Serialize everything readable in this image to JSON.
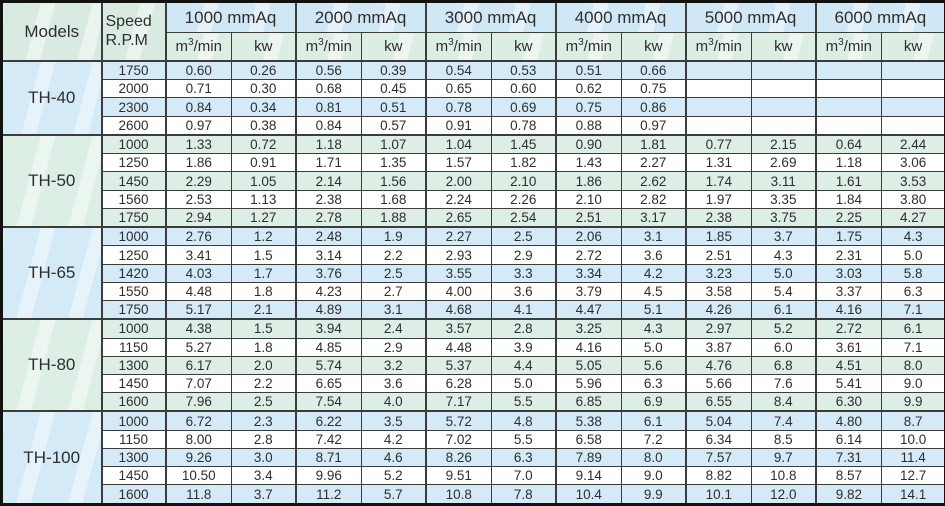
{
  "colors": {
    "tint_blue": "#d4eaf7",
    "tint_green": "#ddeee4",
    "header_blue": "#d0e8f6",
    "header_green": "#d9ebe1",
    "border_dark": "#121212",
    "text": "#2e2e2e"
  },
  "table": {
    "models_header": "Models",
    "speed_header": [
      "Speed",
      "R.P.M"
    ],
    "pressures": [
      "1000 mmAq",
      "2000 mmAq",
      "3000 mmAq",
      "4000 mmAq",
      "5000 mmAq",
      "6000 mmAq"
    ],
    "unit_labels": {
      "flow_base": "m",
      "flow_exp": "3",
      "flow_rest": "/min",
      "power": "kw"
    },
    "groups": [
      {
        "model": "TH-40",
        "tint": "blue",
        "rows": [
          {
            "rpm": "1750",
            "values": [
              "0.60",
              "0.26",
              "0.56",
              "0.39",
              "0.54",
              "0.53",
              "0.51",
              "0.66",
              "",
              "",
              "",
              ""
            ]
          },
          {
            "rpm": "2000",
            "values": [
              "0.71",
              "0.30",
              "0.68",
              "0.45",
              "0.65",
              "0.60",
              "0.62",
              "0.75",
              "",
              "",
              "",
              ""
            ]
          },
          {
            "rpm": "2300",
            "values": [
              "0.84",
              "0.34",
              "0.81",
              "0.51",
              "0.78",
              "0.69",
              "0.75",
              "0.86",
              "",
              "",
              "",
              ""
            ]
          },
          {
            "rpm": "2600",
            "values": [
              "0.97",
              "0.38",
              "0.84",
              "0.57",
              "0.91",
              "0.78",
              "0.88",
              "0.97",
              "",
              "",
              "",
              ""
            ]
          }
        ]
      },
      {
        "model": "TH-50",
        "tint": "green",
        "rows": [
          {
            "rpm": "1000",
            "values": [
              "1.33",
              "0.72",
              "1.18",
              "1.07",
              "1.04",
              "1.45",
              "0.90",
              "1.81",
              "0.77",
              "2.15",
              "0.64",
              "2.44"
            ]
          },
          {
            "rpm": "1250",
            "values": [
              "1.86",
              "0.91",
              "1.71",
              "1.35",
              "1.57",
              "1.82",
              "1.43",
              "2.27",
              "1.31",
              "2.69",
              "1.18",
              "3.06"
            ]
          },
          {
            "rpm": "1450",
            "values": [
              "2.29",
              "1.05",
              "2.14",
              "1.56",
              "2.00",
              "2.10",
              "1.86",
              "2.62",
              "1.74",
              "3.11",
              "1.61",
              "3.53"
            ]
          },
          {
            "rpm": "1560",
            "values": [
              "2.53",
              "1.13",
              "2.38",
              "1.68",
              "2.24",
              "2.26",
              "2.10",
              "2.82",
              "1.97",
              "3.35",
              "1.84",
              "3.80"
            ]
          },
          {
            "rpm": "1750",
            "values": [
              "2.94",
              "1.27",
              "2.78",
              "1.88",
              "2.65",
              "2.54",
              "2.51",
              "3.17",
              "2.38",
              "3.75",
              "2.25",
              "4.27"
            ]
          }
        ]
      },
      {
        "model": "TH-65",
        "tint": "blue",
        "rows": [
          {
            "rpm": "1000",
            "values": [
              "2.76",
              "1.2",
              "2.48",
              "1.9",
              "2.27",
              "2.5",
              "2.06",
              "3.1",
              "1.85",
              "3.7",
              "1.75",
              "4.3"
            ]
          },
          {
            "rpm": "1250",
            "values": [
              "3.41",
              "1.5",
              "3.14",
              "2.2",
              "2.93",
              "2.9",
              "2.72",
              "3.6",
              "2.51",
              "4.3",
              "2.31",
              "5.0"
            ]
          },
          {
            "rpm": "1420",
            "values": [
              "4.03",
              "1.7",
              "3.76",
              "2.5",
              "3.55",
              "3.3",
              "3.34",
              "4.2",
              "3.23",
              "5.0",
              "3.03",
              "5.8"
            ]
          },
          {
            "rpm": "1550",
            "values": [
              "4.48",
              "1.8",
              "4.23",
              "2.7",
              "4.00",
              "3.6",
              "3.79",
              "4.5",
              "3.58",
              "5.4",
              "3.37",
              "6.3"
            ]
          },
          {
            "rpm": "1750",
            "values": [
              "5.17",
              "2.1",
              "4.89",
              "3.1",
              "4.68",
              "4.1",
              "4.47",
              "5.1",
              "4.26",
              "6.1",
              "4.16",
              "7.1"
            ]
          }
        ]
      },
      {
        "model": "TH-80",
        "tint": "green",
        "rows": [
          {
            "rpm": "1000",
            "values": [
              "4.38",
              "1.5",
              "3.94",
              "2.4",
              "3.57",
              "2.8",
              "3.25",
              "4.3",
              "2.97",
              "5.2",
              "2.72",
              "6.1"
            ]
          },
          {
            "rpm": "1150",
            "values": [
              "5.27",
              "1.8",
              "4.85",
              "2.9",
              "4.48",
              "3.9",
              "4.16",
              "5.0",
              "3.87",
              "6.0",
              "3.61",
              "7.1"
            ]
          },
          {
            "rpm": "1300",
            "values": [
              "6.17",
              "2.0",
              "5.74",
              "3.2",
              "5.37",
              "4.4",
              "5.05",
              "5.6",
              "4.76",
              "6.8",
              "4.51",
              "8.0"
            ]
          },
          {
            "rpm": "1450",
            "values": [
              "7.07",
              "2.2",
              "6.65",
              "3.6",
              "6.28",
              "5.0",
              "5.96",
              "6.3",
              "5.66",
              "7.6",
              "5.41",
              "9.0"
            ]
          },
          {
            "rpm": "1600",
            "values": [
              "7.96",
              "2.5",
              "7.54",
              "4.0",
              "7.17",
              "5.5",
              "6.85",
              "6.9",
              "6.55",
              "8.4",
              "6.30",
              "9.9"
            ]
          }
        ]
      },
      {
        "model": "TH-100",
        "tint": "blue",
        "rows": [
          {
            "rpm": "1000",
            "values": [
              "6.72",
              "2.3",
              "6.22",
              "3.5",
              "5.72",
              "4.8",
              "5.38",
              "6.1",
              "5.04",
              "7.4",
              "4.80",
              "8.7"
            ]
          },
          {
            "rpm": "1150",
            "values": [
              "8.00",
              "2.8",
              "7.42",
              "4.2",
              "7.02",
              "5.5",
              "6.58",
              "7.2",
              "6.34",
              "8.5",
              "6.14",
              "10.0"
            ]
          },
          {
            "rpm": "1300",
            "values": [
              "9.26",
              "3.0",
              "8.71",
              "4.6",
              "8.26",
              "6.3",
              "7.89",
              "8.0",
              "7.57",
              "9.7",
              "7.31",
              "11.4"
            ]
          },
          {
            "rpm": "1450",
            "values": [
              "10.50",
              "3.4",
              "9.96",
              "5.2",
              "9.51",
              "7.0",
              "9.14",
              "9.0",
              "8.82",
              "10.8",
              "8.57",
              "12.7"
            ]
          },
          {
            "rpm": "1600",
            "values": [
              "11.8",
              "3.7",
              "11.2",
              "5.7",
              "10.8",
              "7.8",
              "10.4",
              "9.9",
              "10.1",
              "12.0",
              "9.82",
              "14.1"
            ]
          }
        ]
      }
    ]
  }
}
